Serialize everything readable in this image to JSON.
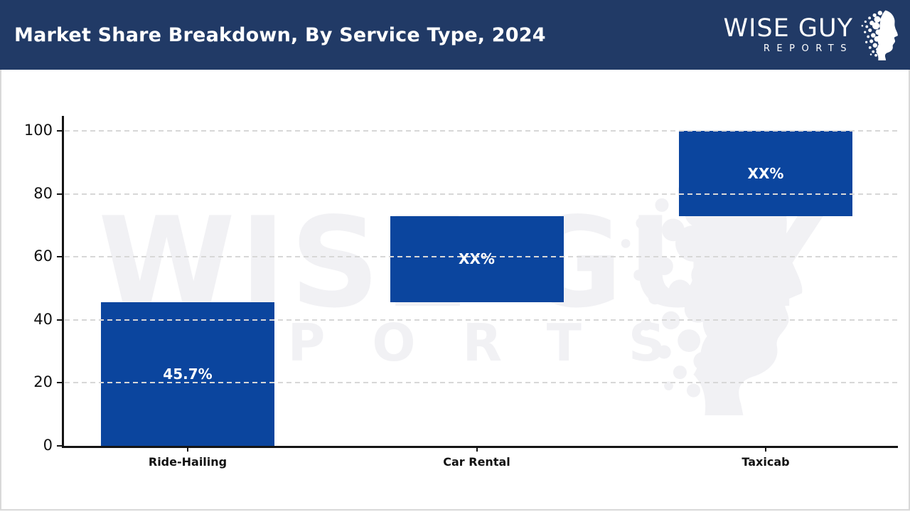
{
  "header": {
    "title": "Market Share Breakdown, By Service Type, 2024",
    "logo": {
      "line1": "WISE GUY",
      "line2": "REPORTS"
    }
  },
  "watermark": {
    "line1": "WISE GUY",
    "line2": "REPORTS"
  },
  "colors": {
    "header_bg": "#213A66",
    "bar_blue": "#0B459E",
    "bar_label": "#ffffff",
    "grid": "#d7d7d7",
    "watermark": "#F1F1F4"
  },
  "chart_data": {
    "type": "bar",
    "subtype": "waterfall",
    "title": "Market Share Breakdown, By Service Type, 2024",
    "categories": [
      "Ride-Hailing",
      "Car Rental",
      "Taxicab"
    ],
    "segments": [
      {
        "category": "Ride-Hailing",
        "start": 0,
        "end": 45.7,
        "label": "45.7%"
      },
      {
        "category": "Car Rental",
        "start": 45.7,
        "end": 72.9,
        "label": "XX%"
      },
      {
        "category": "Taxicab",
        "start": 72.9,
        "end": 100,
        "label": "XX%"
      }
    ],
    "xlabel": "",
    "ylabel": "",
    "yticks": [
      0,
      20,
      40,
      60,
      80,
      100
    ],
    "ylim": [
      0,
      105
    ],
    "grid": "horizontal-dashed",
    "legend": "none",
    "bar_color": "#0B459E",
    "label_color": "#ffffff"
  }
}
